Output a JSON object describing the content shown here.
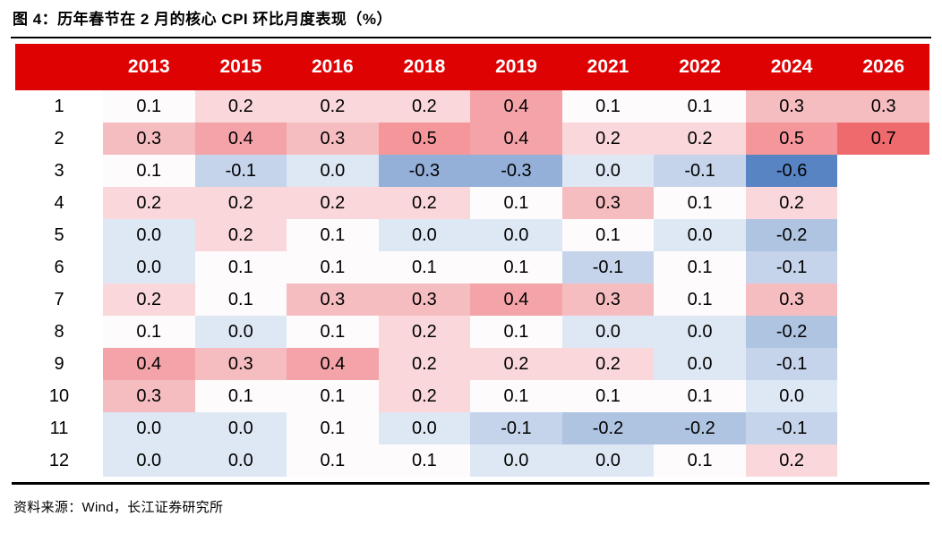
{
  "figure": {
    "title": "图 4：历年春节在 2 月的核心 CPI 环比月度表现（%）",
    "source": "资料来源：Wind，长江证券研究所"
  },
  "colors": {
    "header_bg": "#DE0202",
    "header_text": "#FFFFFF",
    "title_rule": "#000000",
    "footer_rule": "#000000",
    "empty_cell": "#FFFFFF",
    "value_colormap": {
      "0.7": "#EF6A6D",
      "0.5": "#F4969A",
      "0.4": "#F4A3A8",
      "0.3": "#F6BDC1",
      "0.2": "#F9D7DA",
      "0.1": "#FEFBFC",
      "0.0": "#DEE8F4",
      "-0.1": "#C5D4EA",
      "-0.2": "#AFC4E1",
      "-0.3": "#94B0D8",
      "-0.6": "#5884C4"
    }
  },
  "chart_data": {
    "type": "heatmap",
    "title": "历年春节在2月的核心CPI环比月度表现（%）",
    "unit": "%",
    "color_encoding": "red shades = positive month-on-month change, blue shades = negative",
    "columns": [
      "2013",
      "2015",
      "2016",
      "2018",
      "2019",
      "2021",
      "2022",
      "2024",
      "2026"
    ],
    "rows": [
      "1",
      "2",
      "3",
      "4",
      "5",
      "6",
      "7",
      "8",
      "9",
      "10",
      "11",
      "12"
    ],
    "values": [
      [
        "0.1",
        "0.2",
        "0.2",
        "0.2",
        "0.4",
        "0.1",
        "0.1",
        "0.3",
        "0.3"
      ],
      [
        "0.3",
        "0.4",
        "0.3",
        "0.5",
        "0.4",
        "0.2",
        "0.2",
        "0.5",
        "0.7"
      ],
      [
        "0.1",
        "-0.1",
        "0.0",
        "-0.3",
        "-0.3",
        "0.0",
        "-0.1",
        "-0.6",
        null
      ],
      [
        "0.2",
        "0.2",
        "0.2",
        "0.2",
        "0.1",
        "0.3",
        "0.1",
        "0.2",
        null
      ],
      [
        "0.0",
        "0.2",
        "0.1",
        "0.0",
        "0.0",
        "0.1",
        "0.0",
        "-0.2",
        null
      ],
      [
        "0.0",
        "0.1",
        "0.1",
        "0.1",
        "0.1",
        "-0.1",
        "0.1",
        "-0.1",
        null
      ],
      [
        "0.2",
        "0.1",
        "0.3",
        "0.3",
        "0.4",
        "0.3",
        "0.1",
        "0.3",
        null
      ],
      [
        "0.1",
        "0.0",
        "0.1",
        "0.2",
        "0.1",
        "0.0",
        "0.0",
        "-0.2",
        null
      ],
      [
        "0.4",
        "0.3",
        "0.4",
        "0.2",
        "0.2",
        "0.2",
        "0.0",
        "-0.1",
        null
      ],
      [
        "0.3",
        "0.1",
        "0.1",
        "0.2",
        "0.1",
        "0.1",
        "0.1",
        "0.0",
        null
      ],
      [
        "0.0",
        "0.0",
        "0.1",
        "0.0",
        "-0.1",
        "-0.2",
        "-0.2",
        "-0.1",
        null
      ],
      [
        "0.0",
        "0.0",
        "0.1",
        "0.1",
        "0.0",
        "0.0",
        "0.1",
        "0.2",
        null
      ]
    ]
  }
}
